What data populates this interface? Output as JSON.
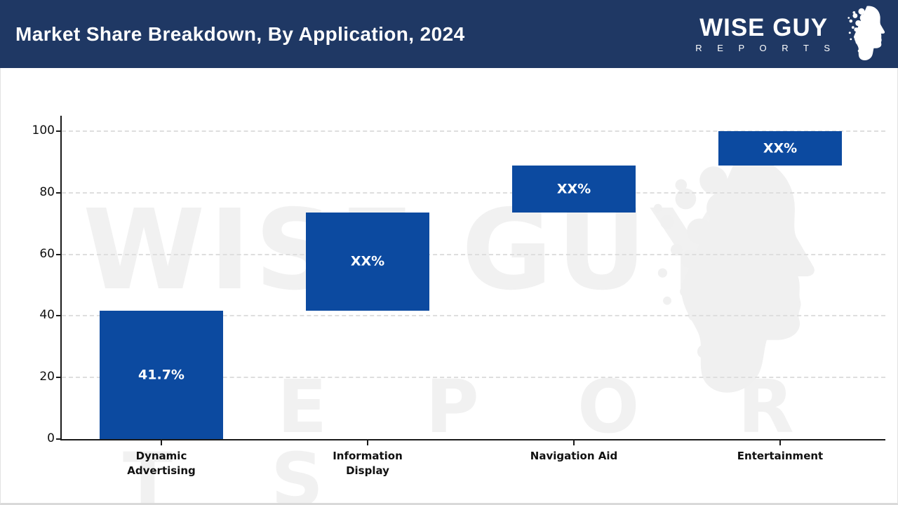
{
  "header": {
    "title": "Market Share Breakdown, By Application, 2024",
    "logo": {
      "brand_line1": "WISE GUY",
      "brand_line2": "R E P O R T S"
    }
  },
  "watermark": {
    "line1": "WISE GUY",
    "line2": "R E P O R T S"
  },
  "colors": {
    "header_bg": "#1f3864",
    "bar": "#0c4aa0",
    "grid": "#dedede",
    "axis": "#1a1a1a",
    "bar_label": "#ffffff",
    "watermark": "#f1f1f1"
  },
  "chart_data": {
    "type": "bar",
    "subtype": "waterfall",
    "title": "Market Share Breakdown, By Application, 2024",
    "categories": [
      "Dynamic\nAdvertising",
      "Information\nDisplay",
      "Navigation Aid",
      "Entertainment"
    ],
    "segments": [
      {
        "category": "Dynamic\nAdvertising",
        "start": 0,
        "end": 41.7,
        "delta": 41.7,
        "label": "41.7%"
      },
      {
        "category": "Information\nDisplay",
        "start": 41.7,
        "end": 73.5,
        "delta": 31.8,
        "label": "XX%"
      },
      {
        "category": "Navigation Aid",
        "start": 73.5,
        "end": 88.8,
        "delta": 15.3,
        "label": "XX%"
      },
      {
        "category": "Entertainment",
        "start": 88.8,
        "end": 100,
        "delta": 11.2,
        "label": "XX%"
      }
    ],
    "yticks": [
      0,
      20,
      40,
      60,
      80,
      100
    ],
    "ylim": [
      0,
      100
    ],
    "xlabel": "",
    "ylabel": "",
    "grid": "horizontal dashed",
    "legend": "none",
    "bar_color": "#0c4aa0",
    "label_color": "#ffffff"
  }
}
